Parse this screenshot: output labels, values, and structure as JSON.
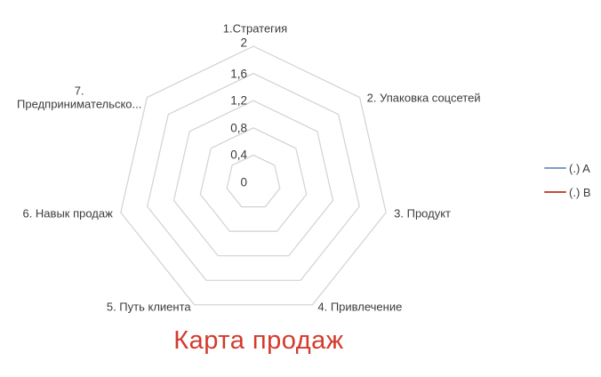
{
  "chart_data": {
    "type": "radar",
    "title": "Карта продаж",
    "title_color": "#d33b2e",
    "categories": [
      "1.Стратегия",
      "2. Упаковка соцсетей",
      "3. Продукт",
      "4. Привлечение",
      "5. Путь клиента",
      "6. Навык продаж",
      "7.\nПредпринимательско..."
    ],
    "axis": {
      "min": 0,
      "max": 2,
      "tick_labels": [
        "0",
        "0,4",
        "0,8",
        "1,2",
        "1,6",
        "2"
      ],
      "tick_values": [
        0,
        0.4,
        0.8,
        1.2,
        1.6,
        2
      ]
    },
    "series": [
      {
        "name": "(.) A",
        "color": "#7f9cca",
        "values": []
      },
      {
        "name": "(.) B",
        "color": "#c8483e",
        "values": []
      }
    ],
    "grid": {
      "color": "#d2d2d2",
      "rings": 5,
      "spokes": false
    },
    "legend_position": "right",
    "label_color": "#3c3c3c"
  }
}
